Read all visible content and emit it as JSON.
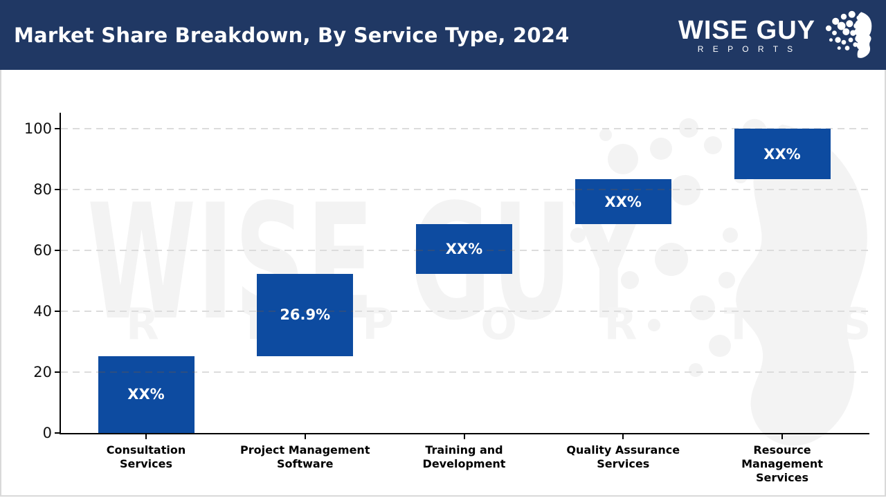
{
  "header": {
    "title": "Market Share Breakdown, By Service Type, 2024",
    "logo": {
      "name": "WISE GUY",
      "sub": "R E P O R T S"
    }
  },
  "watermark": {
    "line1": "WISE GUY",
    "line2": "R E P O R T S"
  },
  "chart_data": {
    "type": "bar",
    "subtype": "waterfall",
    "title": "Market Share Breakdown, By Service Type, 2024",
    "categories": [
      "Consultation\nServices",
      "Project Management\nSoftware",
      "Training and\nDevelopment",
      "Quality Assurance\nServices",
      "Resource\nManagement\nServices"
    ],
    "segments": [
      {
        "start": 0,
        "end": 25.3,
        "label": "XX%"
      },
      {
        "start": 25.3,
        "end": 52.2,
        "label": "26.9%"
      },
      {
        "start": 52.2,
        "end": 68.6,
        "label": "XX%"
      },
      {
        "start": 68.6,
        "end": 83.3,
        "label": "XX%"
      },
      {
        "start": 83.3,
        "end": 100,
        "label": "XX%"
      }
    ],
    "yticks": [
      0,
      20,
      40,
      60,
      80,
      100
    ],
    "ylim": [
      0,
      105
    ],
    "xlabel": "",
    "ylabel": "",
    "grid": "dashed-horizontal",
    "legend": "none",
    "bar_color": "#0d4ba0"
  },
  "colors": {
    "header_bg": "#203864",
    "bar": "#0d4ba0",
    "grid": "#dcdcdc",
    "axis": "#000000",
    "watermark": "#f3f3f3",
    "card_border": "#d9d9d9"
  }
}
